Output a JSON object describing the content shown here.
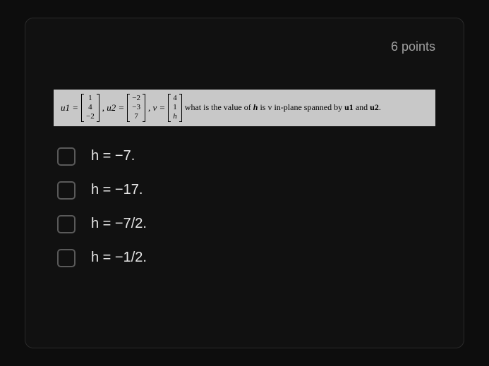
{
  "header": {
    "points_label": "6 points"
  },
  "question": {
    "u1_label": "u1 =",
    "u1_vector": [
      "1",
      "4",
      "−2"
    ],
    "u2_label": ", u2 =",
    "u2_vector": [
      "−2",
      "−3",
      "7"
    ],
    "v_label": ", v =",
    "v_vector": [
      "4",
      "1",
      "h"
    ],
    "text_prefix": " what is the value of ",
    "h_var": "h",
    "text_mid": " is v in-plane spanned by ",
    "u1_bold": "u1",
    "text_and": " and ",
    "u2_bold": "u2",
    "text_suffix": ".",
    "background_color": "#c8c8c8",
    "text_color": "#000000"
  },
  "options": [
    {
      "label": "h = −7."
    },
    {
      "label": "h = −17."
    },
    {
      "label": "h = −7/2."
    },
    {
      "label": "h = −1/2."
    }
  ],
  "colors": {
    "page_bg": "#0d0d0d",
    "card_bg": "#111111",
    "card_border": "#2a2a2a",
    "points_text": "#a0a0a0",
    "option_text": "#e8e8e8",
    "checkbox_border": "#5a5a5a"
  }
}
